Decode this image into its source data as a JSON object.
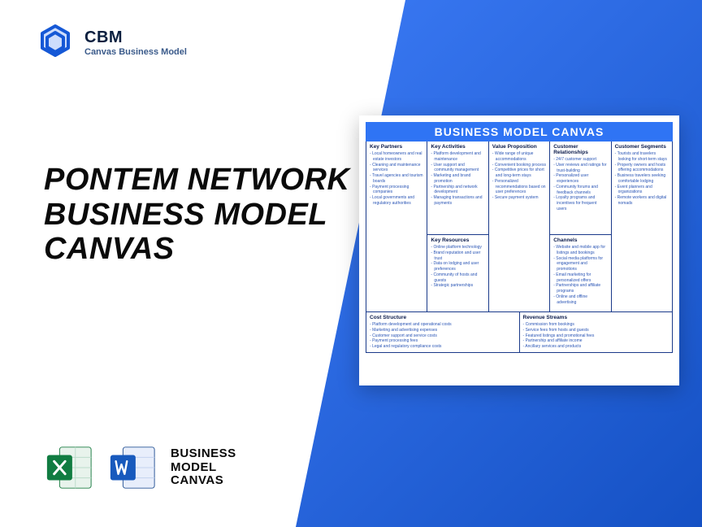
{
  "logo": {
    "brand": "CBM",
    "sub": "Canvas Business Model"
  },
  "title_line1": "PONTEM NETWORK",
  "title_line2": "BUSINESS MODEL",
  "title_line3": "CANVAS",
  "file_label_l1": "BUSINESS",
  "file_label_l2": "MODEL",
  "file_label_l3": "CANVAS",
  "canvas": {
    "title": "BUSINESS MODEL CANVAS",
    "colors": {
      "header_bg": "#2f74f4",
      "border": "#1a3a8a",
      "text_heading": "#0a1a4a",
      "text_item": "#2a55b5"
    },
    "key_partners": {
      "h": "Key Partners",
      "items": [
        "Local homeowners and real estate investors",
        "Cleaning and maintenance services",
        "Travel agencies and tourism boards",
        "Payment processing companies",
        "Local governments and regulatory authorities"
      ]
    },
    "key_activities": {
      "h": "Key Activities",
      "items": [
        "Platform development and maintenance",
        "User support and community management",
        "Marketing and brand promotion",
        "Partnership and network development",
        "Managing transactions and payments"
      ]
    },
    "key_resources": {
      "h": "Key Resources",
      "items": [
        "Online platform technology",
        "Brand reputation and user trust",
        "Data on lodging and user preferences",
        "Community of hosts and guests",
        "Strategic partnerships"
      ]
    },
    "value_proposition": {
      "h": "Value Proposition",
      "items": [
        "Wide range of unique accommodations",
        "Convenient booking process",
        "Competitive prices for short and long-term stays",
        "Personalized recommendations based on user preferences",
        "Secure payment system"
      ]
    },
    "customer_relationships": {
      "h": "Customer Relationships",
      "items": [
        "24/7 customer support",
        "User reviews and ratings for trust-building",
        "Personalized user experiences",
        "Community forums and feedback channels",
        "Loyalty programs and incentives for frequent users"
      ]
    },
    "channels": {
      "h": "Channels",
      "items": [
        "Website and mobile app for listings and bookings",
        "Social media platforms for engagement and promotions",
        "Email marketing for personalized offers",
        "Partnerships and affiliate programs",
        "Online and offline advertising"
      ]
    },
    "customer_segments": {
      "h": "Customer Segments",
      "items": [
        "Tourists and travelers looking for short-term stays",
        "Property owners and hosts offering accommodations",
        "Business travelers seeking comfortable lodging",
        "Event planners and organizations",
        "Remote workers and digital nomads"
      ]
    },
    "cost_structure": {
      "h": "Cost Structure",
      "items": [
        "Platform development and operational costs",
        "Marketing and advertising expenses",
        "Customer support and service costs",
        "Payment processing fees",
        "Legal and regulatory compliance costs"
      ]
    },
    "revenue_streams": {
      "h": "Revenue Streams",
      "items": [
        "Commission from bookings",
        "Service fees from hosts and guests",
        "Featured listings and promotional fees",
        "Partnership and affiliate income",
        "Ancillary services and products"
      ]
    }
  }
}
